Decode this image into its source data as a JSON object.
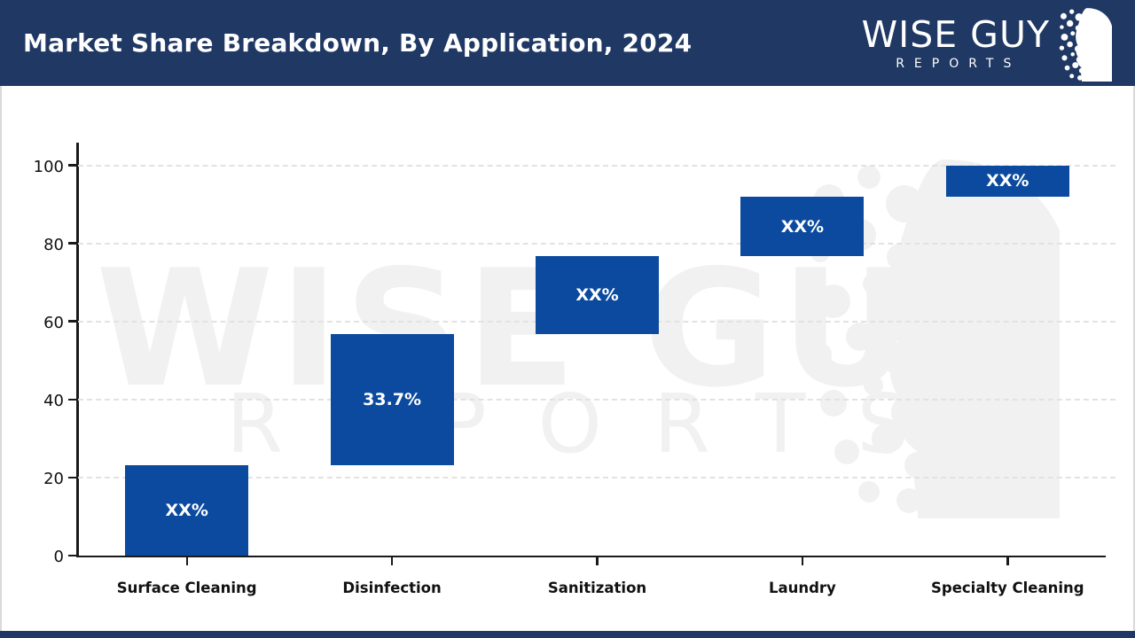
{
  "header": {
    "title": "Market Share Breakdown, By Application, 2024",
    "background_color": "#1f3864",
    "logo": {
      "primary": "WISE GUY",
      "secondary": "REPORTS"
    }
  },
  "watermark": {
    "line1": "WISE GUY",
    "line2": "REPORTS"
  },
  "footer": {
    "bar_color": "#1f3864"
  },
  "chart_data": {
    "type": "bar",
    "subtype": "waterfall",
    "title": "Market Share Breakdown, By Application, 2024",
    "categories": [
      "Surface Cleaning",
      "Disinfection",
      "Sanitization",
      "Laundry",
      "Specialty Cleaning"
    ],
    "bars": [
      {
        "category": "Surface Cleaning",
        "start": 0,
        "end": 23.1,
        "value": 23.1,
        "label": "XX%"
      },
      {
        "category": "Disinfection",
        "start": 23.1,
        "end": 56.8,
        "value": 33.7,
        "label": "33.7%"
      },
      {
        "category": "Sanitization",
        "start": 56.8,
        "end": 76.7,
        "value": 19.9,
        "label": "XX%"
      },
      {
        "category": "Laundry",
        "start": 76.7,
        "end": 91.9,
        "value": 15.2,
        "label": "XX%"
      },
      {
        "category": "Specialty Cleaning",
        "start": 91.9,
        "end": 100.0,
        "value": 8.1,
        "label": "XX%"
      }
    ],
    "yticks": [
      0,
      20,
      40,
      60,
      80,
      100
    ],
    "ylim": [
      0,
      104.5
    ],
    "xlabel": "",
    "ylabel": "",
    "bar_color": "#0b4a9e",
    "bar_label_color": "#ffffff",
    "grid": "horizontal dashed",
    "legend_position": "none"
  }
}
